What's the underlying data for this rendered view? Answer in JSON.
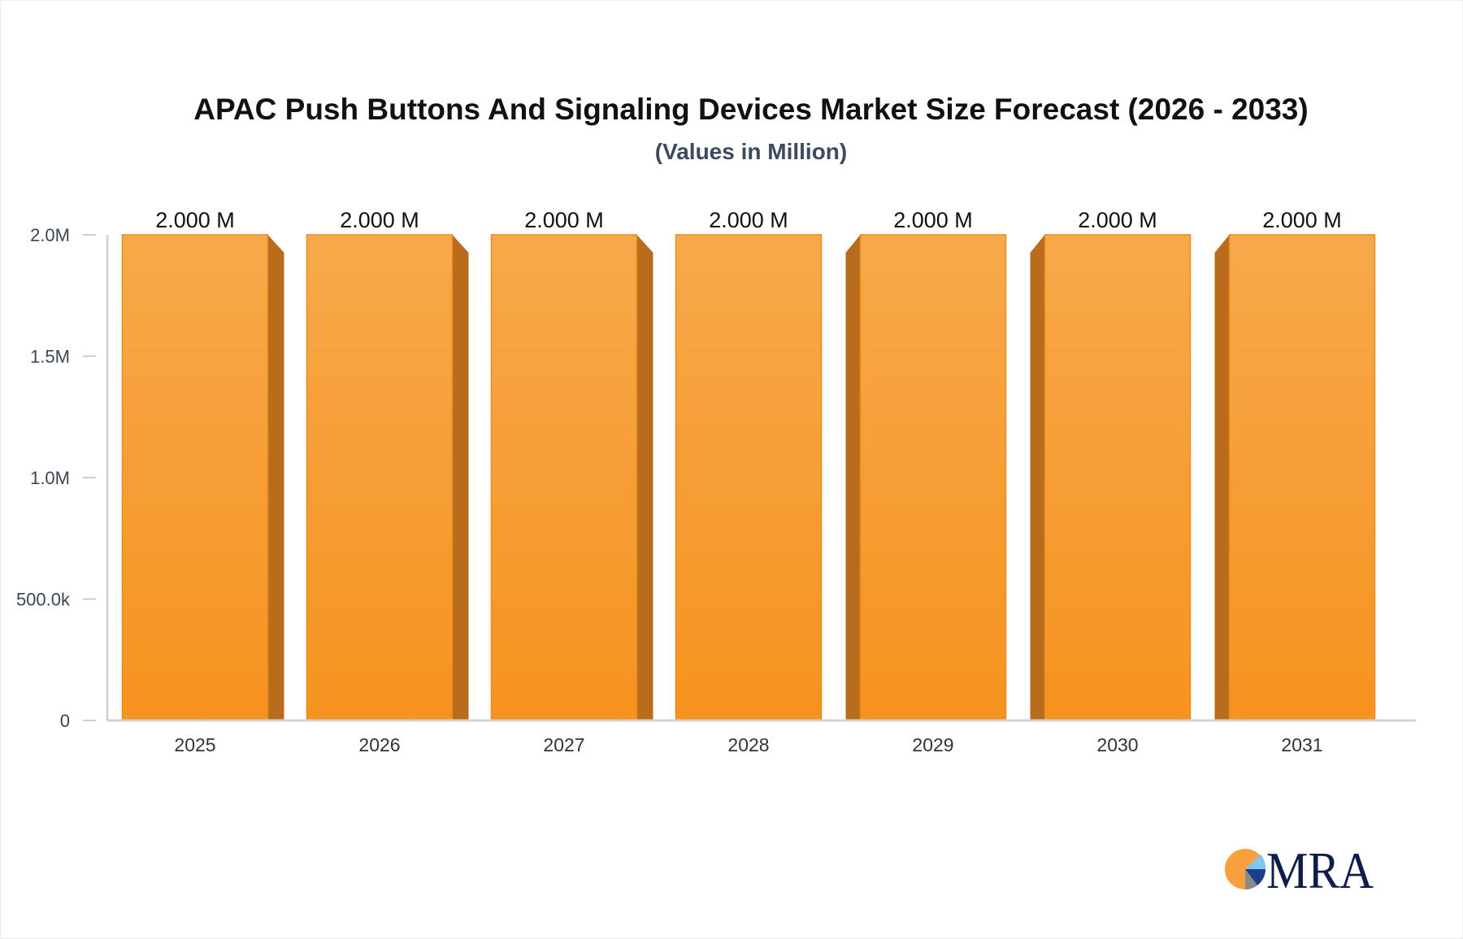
{
  "chart_data": {
    "type": "bar",
    "title": "APAC Push Buttons And Signaling Devices Market Size Forecast (2026 - 2033)",
    "subtitle": "(Values in Million)",
    "categories": [
      "2025",
      "2026",
      "2027",
      "2028",
      "2029",
      "2030",
      "2031"
    ],
    "values": [
      2.0,
      2.0,
      2.0,
      2.0,
      2.0,
      2.0,
      2.0
    ],
    "data_labels": [
      "2.000 M",
      "2.000 M",
      "2.000 M",
      "2.000 M",
      "2.000 M",
      "2.000 M",
      "2.000 M"
    ],
    "ylim": [
      0,
      2.0
    ],
    "yticks": [
      0,
      0.5,
      1.0,
      1.5,
      2.0
    ],
    "ytick_labels": [
      "0",
      "500.0k",
      "1.0M",
      "1.5M",
      "2.0M"
    ],
    "xlabel": "",
    "ylabel": "",
    "grid": false,
    "bar_color": "#f7a03c",
    "bar_side_color": "#b86c1c"
  },
  "logo": {
    "text": "MRA",
    "colors": [
      "#f7a03c",
      "#7ec8f0",
      "#1c3f8c",
      "#8a8a8a",
      "#0d1b4d"
    ]
  }
}
